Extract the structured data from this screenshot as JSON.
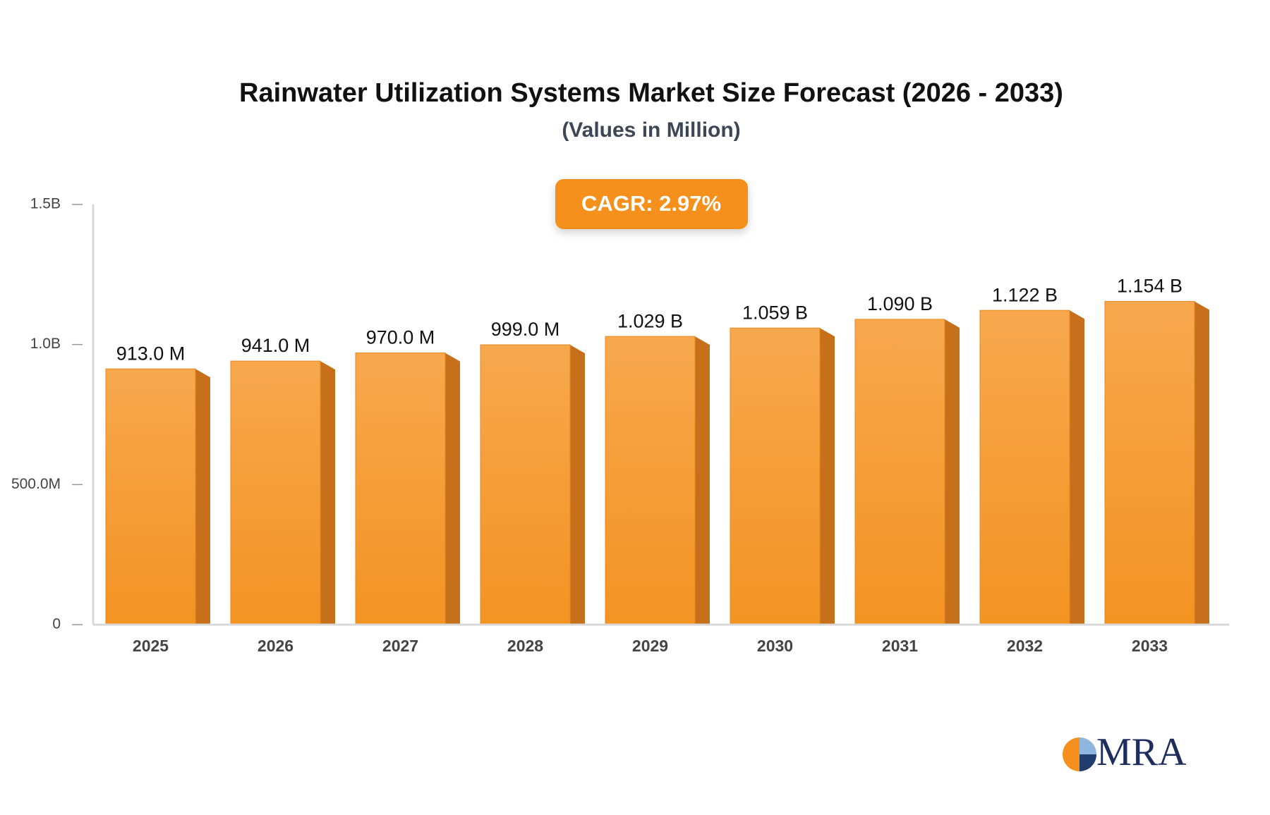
{
  "chart_data": {
    "type": "bar3d",
    "title": "Rainwater Utilization Systems Market Size Forecast (2026 - 2033)",
    "subtitle": "(Values in Million)",
    "annotation": "CAGR: 2.97%",
    "logo": "MRA",
    "categories": [
      "2025",
      "2026",
      "2027",
      "2028",
      "2029",
      "2030",
      "2031",
      "2032",
      "2033"
    ],
    "values": [
      913,
      941,
      970,
      999,
      1029,
      1059,
      1090,
      1122,
      1154
    ],
    "value_labels": [
      "913.0 M",
      "941.0 M",
      "970.0 M",
      "999.0 M",
      "1.029 B",
      "1.059 B",
      "1.090 B",
      "1.122 B",
      "1.154 B"
    ],
    "color": "#f5a040",
    "ylim": [
      0,
      1500
    ],
    "yticks": [
      0,
      {
        "value": 500,
        "label": "500.0M"
      },
      {
        "value": 1000,
        "label": "1.0B"
      },
      {
        "value": 1500,
        "label": "1.5B"
      }
    ]
  }
}
